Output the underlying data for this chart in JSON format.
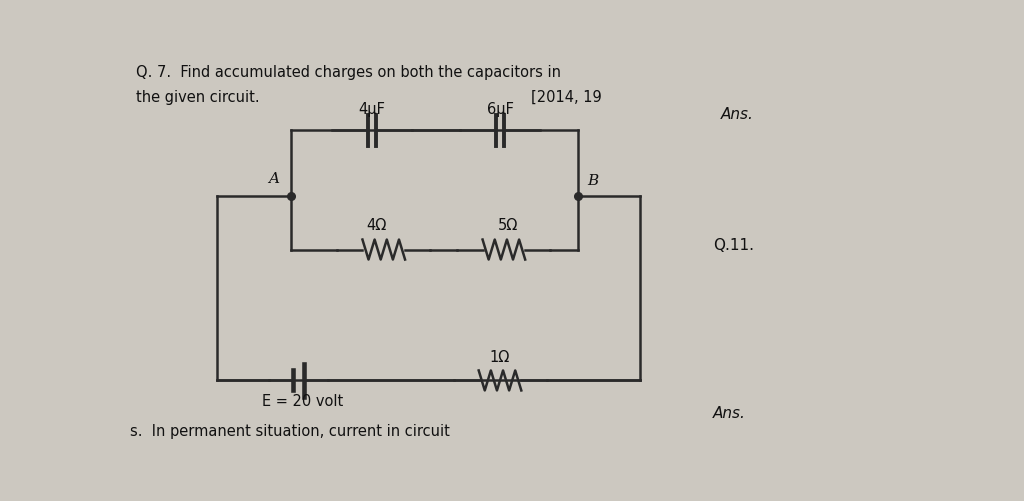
{
  "title_line1": "Q. 7.  Find accumulated charges on both the capacitors in",
  "title_line2": "the given circuit.",
  "ref": "[2014, 19",
  "ans_text": "Ans.",
  "q11_text": "Q.11.",
  "ans_text2": "Ans.",
  "bottom_text": "s.  In permanent situation, current in circuit",
  "cap1_label": "4μF",
  "cap2_label": "6μF",
  "res1_label": "4Ω",
  "res2_label": "5Ω",
  "res3_label": "1Ω",
  "battery_label": "E = 20 volt",
  "node_A": "A",
  "node_B": "B",
  "bg_color": "#ccc8c0",
  "line_color": "#2a2a2a",
  "text_color": "#111111"
}
